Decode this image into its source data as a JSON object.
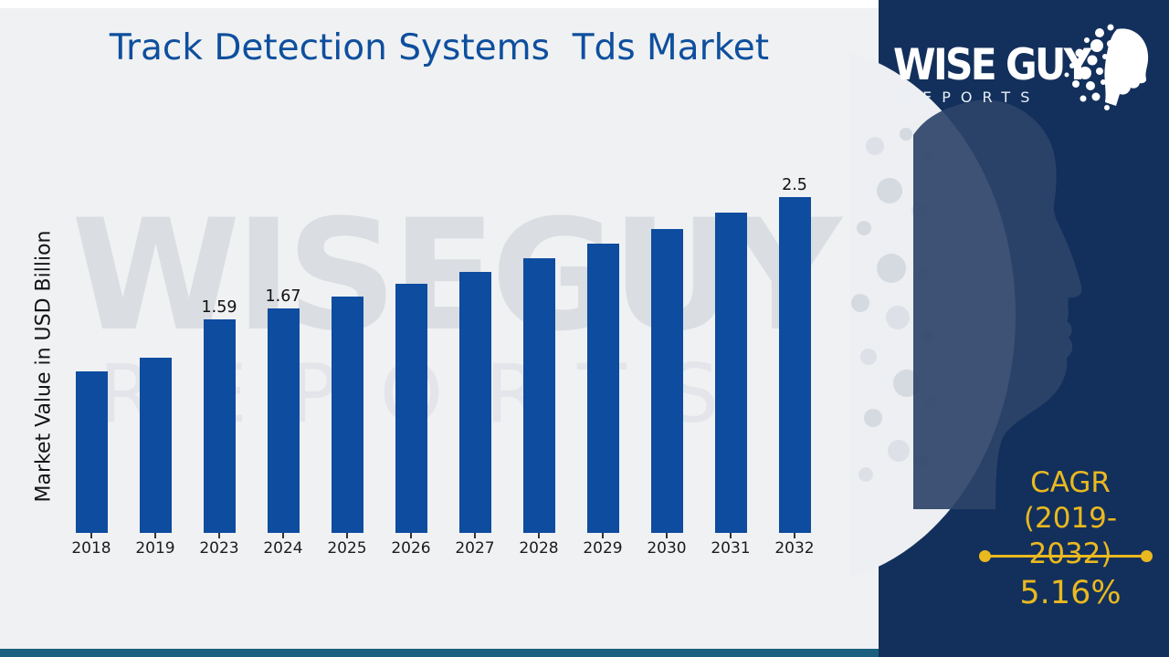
{
  "title": "Track Detection Systems  Tds Market",
  "y_axis_label": "Market Value in USD Billion",
  "watermark": {
    "line1": "WISEGUY",
    "line2": "REPORTS"
  },
  "logo": {
    "line1": "WISE GUY",
    "line2": "REPORTS"
  },
  "cagr": {
    "heading": "CAGR",
    "range": "(2019-2032)",
    "value": "5.16%"
  },
  "colors": {
    "bar": "#0d4c9f",
    "title_blue": "#0e4f9e",
    "panel_navy": "#13305c",
    "face_navy": "#2e4469",
    "gold": "#eab91f",
    "teal_strip": "#1b607e",
    "background": "#f0f1f2",
    "watermark_gray": "#dadde2"
  },
  "chart_data": {
    "type": "bar",
    "categories": [
      "2018",
      "2019",
      "2023",
      "2024",
      "2025",
      "2026",
      "2027",
      "2028",
      "2029",
      "2030",
      "2031",
      "2032"
    ],
    "values": [
      1.2,
      1.3,
      1.59,
      1.67,
      1.76,
      1.85,
      1.94,
      2.04,
      2.15,
      2.26,
      2.38,
      2.5
    ],
    "data_labels": [
      "",
      "",
      "1.59",
      "1.67",
      "",
      "",
      "",
      "",
      "",
      "",
      "",
      "2.5"
    ],
    "title": "Track Detection Systems  Tds Market",
    "xlabel": "",
    "ylabel": "Market Value in USD Billion",
    "ylim": [
      0,
      2.86
    ],
    "grid": false,
    "y_axis_ticks_visible": false,
    "legend": "none"
  }
}
